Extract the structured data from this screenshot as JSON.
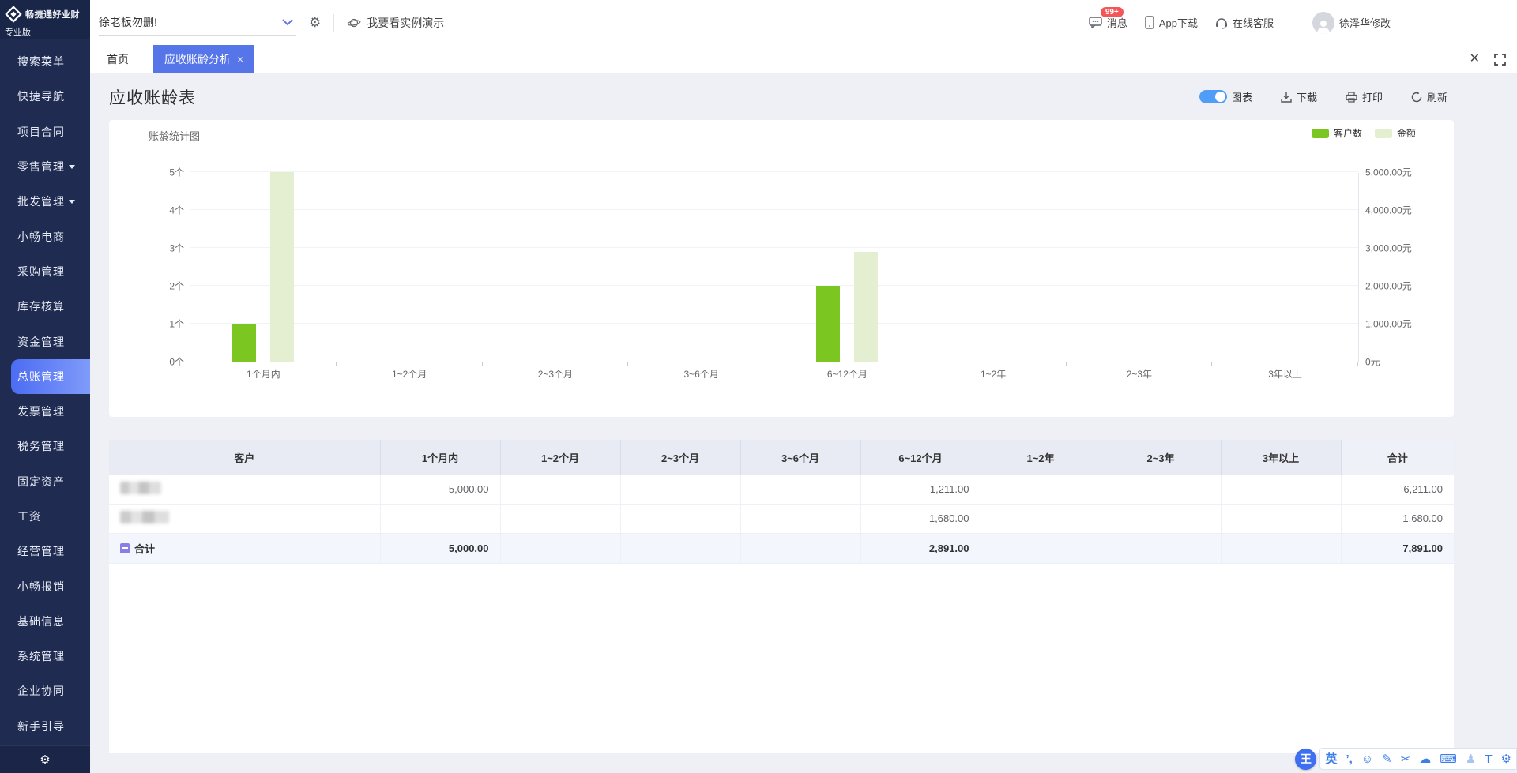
{
  "brand": {
    "name": "畅捷通好业财",
    "edition": "专业版"
  },
  "topbar": {
    "account": "徐老板勿删!",
    "demo": "我要看实例演示",
    "messages": "消息",
    "messages_badge": "99+",
    "app_download": "App下载",
    "online_service": "在线客服",
    "user": "徐泽华修改"
  },
  "tabs": {
    "home": "首页",
    "active": "应收账龄分析"
  },
  "page": {
    "title": "应收账龄表"
  },
  "toolbar": {
    "chart_toggle": "图表",
    "download": "下载",
    "print": "打印",
    "refresh": "刷新"
  },
  "sidebar": {
    "items": [
      {
        "label": "搜索菜单"
      },
      {
        "label": "快捷导航"
      },
      {
        "label": "项目合同"
      },
      {
        "label": "零售管理",
        "arrow": true
      },
      {
        "label": "批发管理",
        "arrow": true
      },
      {
        "label": "小畅电商"
      },
      {
        "label": "采购管理"
      },
      {
        "label": "库存核算"
      },
      {
        "label": "资金管理"
      },
      {
        "label": "总账管理",
        "active": true
      },
      {
        "label": "发票管理"
      },
      {
        "label": "税务管理"
      },
      {
        "label": "固定资产"
      },
      {
        "label": "工资"
      },
      {
        "label": "经营管理"
      },
      {
        "label": "小畅报销"
      },
      {
        "label": "基础信息"
      },
      {
        "label": "系统管理"
      },
      {
        "label": "企业协同"
      },
      {
        "label": "新手引导"
      }
    ]
  },
  "chart_data": {
    "type": "bar",
    "title": "账龄统计图",
    "categories": [
      "1个月内",
      "1~2个月",
      "2~3个月",
      "3~6个月",
      "6~12个月",
      "1~2年",
      "2~3年",
      "3年以上"
    ],
    "series": [
      {
        "name": "客户数",
        "axis": "left",
        "color": "#7cc622",
        "values": [
          1,
          0,
          0,
          0,
          2,
          0,
          0,
          0
        ]
      },
      {
        "name": "金额",
        "axis": "right",
        "color": "#e3efd0",
        "values": [
          5000,
          0,
          0,
          0,
          2891,
          0,
          0,
          0
        ]
      }
    ],
    "left_axis": {
      "max": 5,
      "ticks": [
        "0个",
        "1个",
        "2个",
        "3个",
        "4个",
        "5个"
      ]
    },
    "right_axis": {
      "max": 5000,
      "ticks": [
        "0元",
        "1,000.00元",
        "2,000.00元",
        "3,000.00元",
        "4,000.00元",
        "5,000.00元"
      ]
    },
    "legend_position": "top-right",
    "grid": true
  },
  "table": {
    "headers": [
      "客户",
      "1个月内",
      "1~2个月",
      "2~3个月",
      "3~6个月",
      "6~12个月",
      "1~2年",
      "2~3年",
      "3年以上",
      "合计"
    ],
    "rows": [
      {
        "customer": "",
        "redacted": true,
        "values": [
          "5,000.00",
          "",
          "",
          "",
          "1,211.00",
          "",
          "",
          "",
          "6,211.00"
        ]
      },
      {
        "customer": "",
        "redacted": true,
        "values": [
          "",
          "",
          "",
          "",
          "1,680.00",
          "",
          "",
          "",
          "1,680.00"
        ]
      }
    ],
    "total": {
      "label": "合计",
      "values": [
        "5,000.00",
        "",
        "",
        "",
        "2,891.00",
        "",
        "",
        "",
        "7,891.00"
      ]
    }
  },
  "ime": {
    "logo": "王",
    "icons": [
      {
        "name": "lang-en-icon",
        "glyph": "英"
      },
      {
        "name": "punctuation-icon",
        "glyph": "’,"
      },
      {
        "name": "emoji-icon",
        "glyph": "☺"
      },
      {
        "name": "pencil-icon",
        "glyph": "✎"
      },
      {
        "name": "scissors-icon",
        "glyph": "✂"
      },
      {
        "name": "cloud-icon",
        "glyph": "☁"
      },
      {
        "name": "keyboard-icon",
        "glyph": "⌨"
      },
      {
        "name": "person-icon",
        "glyph": "♟",
        "muted": true
      },
      {
        "name": "shirt-icon",
        "glyph": "T"
      },
      {
        "name": "gear-icon",
        "glyph": "⚙"
      }
    ]
  }
}
